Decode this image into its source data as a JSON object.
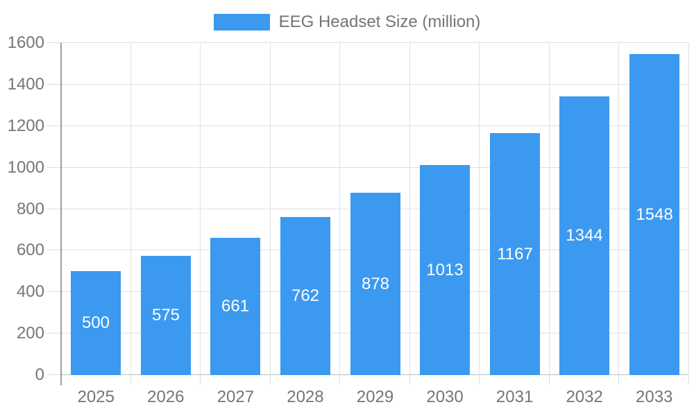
{
  "chart_data": {
    "type": "bar",
    "title": "EEG Headset Size (million)",
    "categories": [
      "2025",
      "2026",
      "2027",
      "2028",
      "2029",
      "2030",
      "2031",
      "2032",
      "2033"
    ],
    "values": [
      500,
      575,
      661,
      762,
      878,
      1013,
      1167,
      1344,
      1548
    ],
    "xlabel": "",
    "ylabel": "",
    "ylim": [
      0,
      1600
    ],
    "ytick_step": 200,
    "grid": true,
    "legend_position": "top",
    "bar_color": "#3B99F0",
    "bar_label_color": "#FFFFFF",
    "axis_text_color": "#757575",
    "grid_color": "#E0E0E0",
    "baseline_color": "#BDBDBD",
    "axis_line_color": "#9E9E9E",
    "tick_color": "#DCDCDC"
  }
}
